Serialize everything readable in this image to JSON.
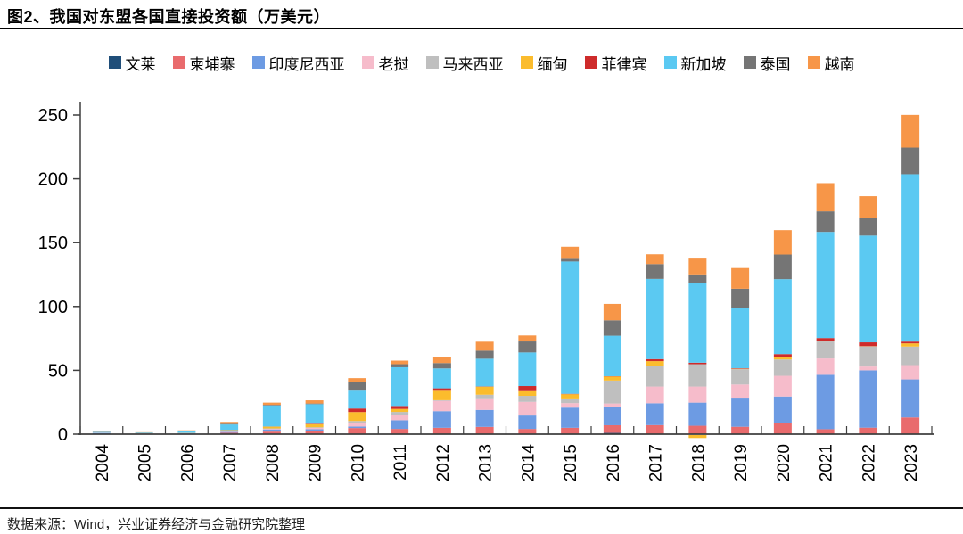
{
  "title": "图2、我国对东盟各国直接投资额（万美元）",
  "footer": {
    "source_label": "数据来源：Wind，兴业证券经济与金融研究院整理"
  },
  "colors": {
    "axis": "#3f3f3f",
    "text": "#000000",
    "rule": "#000000"
  },
  "chart_data": {
    "type": "bar",
    "stacked": true,
    "title": "图2、我国对东盟各国直接投资额（万美元）",
    "xlabel": "",
    "ylabel": "",
    "unit": "万美元",
    "grid": false,
    "legend_position": "top",
    "ylim": [
      0,
      250
    ],
    "yticks": [
      0,
      50,
      100,
      150,
      200,
      250
    ],
    "categories": [
      "2004",
      "2005",
      "2006",
      "2007",
      "2008",
      "2009",
      "2010",
      "2011",
      "2012",
      "2013",
      "2014",
      "2015",
      "2016",
      "2017",
      "2018",
      "2019",
      "2020",
      "2021",
      "2022",
      "2023"
    ],
    "series": [
      {
        "name": "文莱",
        "color": "#1F4E79",
        "values": [
          0.0,
          0.0,
          0.0,
          0.1,
          0.0,
          0.1,
          0.1,
          0.1,
          0.1,
          0.1,
          0.1,
          0.1,
          1.0,
          0.2,
          0.2,
          0.1,
          0.1,
          0.1,
          0.1,
          0.1
        ]
      },
      {
        "name": "柬埔寨",
        "color": "#E96B6D",
        "values": [
          0.3,
          0.2,
          0.2,
          1.0,
          2.0,
          2.2,
          4.7,
          4.0,
          4.9,
          5.6,
          4.0,
          4.9,
          6.0,
          6.9,
          6.4,
          5.7,
          8.4,
          3.8,
          5.0,
          13.0
        ]
      },
      {
        "name": "印度尼西亚",
        "color": "#6D9BE3",
        "values": [
          0.6,
          0.3,
          0.4,
          0.6,
          1.7,
          1.6,
          1.2,
          6.8,
          13.0,
          13.3,
          10.5,
          15.8,
          14.0,
          17.1,
          18.1,
          22.1,
          21.0,
          42.6,
          44.9,
          29.8
        ]
      },
      {
        "name": "老挝",
        "color": "#F6BCCB",
        "values": [
          0.1,
          0.1,
          0.2,
          0.3,
          0.5,
          1.0,
          2.4,
          4.2,
          8.1,
          8.4,
          10.7,
          3.5,
          3.0,
          13.1,
          12.6,
          11.0,
          16.2,
          12.8,
          3.0,
          11.2
        ]
      },
      {
        "name": "马来西亚",
        "color": "#BFBFBF",
        "values": [
          0.2,
          0.2,
          0.1,
          0.2,
          0.3,
          0.5,
          1.9,
          2.3,
          0.5,
          3.5,
          4.7,
          3.0,
          18.0,
          16.4,
          17.5,
          12.0,
          12.8,
          13.3,
          15.7,
          14.5
        ]
      },
      {
        "name": "缅甸",
        "color": "#FBBC2D",
        "values": [
          0.0,
          0.1,
          0.1,
          0.9,
          1.4,
          2.4,
          7.0,
          2.4,
          7.4,
          6.3,
          3.7,
          4.0,
          3.2,
          3.5,
          -2.3,
          0.3,
          1.9,
          0.2,
          0.2,
          2.5
        ]
      },
      {
        "name": "菲律宾",
        "color": "#CE2B2B",
        "values": [
          0.0,
          0.0,
          0.0,
          0.1,
          0.1,
          0.4,
          2.8,
          2.3,
          1.9,
          0.2,
          4.0,
          0.3,
          0.2,
          1.6,
          1.2,
          0.4,
          2.3,
          2.5,
          3.0,
          1.4
        ]
      },
      {
        "name": "新加坡",
        "color": "#5BC9F2",
        "values": [
          0.5,
          0.4,
          1.5,
          4.4,
          16.5,
          15.3,
          14.0,
          30.3,
          15.6,
          21.7,
          26.3,
          103.6,
          31.7,
          62.8,
          62.1,
          47.1,
          58.7,
          83.1,
          83.6,
          131.1
        ]
      },
      {
        "name": "泰国",
        "color": "#757575",
        "values": [
          0.2,
          0.1,
          0.2,
          0.5,
          0.5,
          0.5,
          6.9,
          2.4,
          4.2,
          6.3,
          8.6,
          2.8,
          12.1,
          11.6,
          7.0,
          15.2,
          19.3,
          16.1,
          13.5,
          20.9
        ]
      },
      {
        "name": "越南",
        "color": "#F79648",
        "values": [
          0.1,
          0.1,
          0.3,
          1.5,
          1.7,
          2.5,
          2.9,
          2.8,
          4.7,
          7.0,
          4.7,
          8.8,
          12.8,
          7.7,
          13.1,
          16.2,
          19.1,
          22.1,
          17.4,
          25.6
        ]
      }
    ]
  }
}
